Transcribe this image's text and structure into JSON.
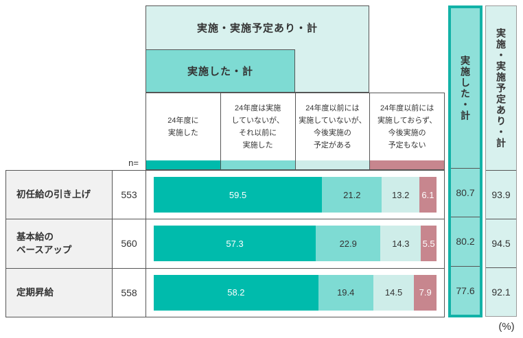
{
  "header": {
    "outer_label": "実施・実施予定あり・計",
    "inner_label": "実施した・計",
    "n_label": "n=",
    "columns": [
      {
        "label": "24年度に\n実施した",
        "color": "#00BBAC"
      },
      {
        "label": "24年度は実施\nしていないが、\nそれ以前に\n実施した",
        "color": "#7EDBD3"
      },
      {
        "label": "24年度以前には\n実施していないが、\n今後実施の\n予定がある",
        "color": "#CEEDE9"
      },
      {
        "label": "24年度以前には\n実施しておらず、\n今後実施の\n予定もない",
        "color": "#C7868E"
      }
    ]
  },
  "totals_columns": [
    {
      "label": "実施した・計",
      "fill": "#8EE0D9",
      "border": "#12B2A7"
    },
    {
      "label": "実施・実施予定あり・計",
      "fill": "#D8F1EE"
    }
  ],
  "rows": [
    {
      "label": "初任給の引き上げ",
      "n": "553",
      "values": [
        59.5,
        21.2,
        13.2,
        6.1
      ],
      "implemented_total": "80.7",
      "planned_total": "93.9"
    },
    {
      "label": "基本給の\nベースアップ",
      "n": "560",
      "values": [
        57.3,
        22.9,
        14.3,
        5.5
      ],
      "implemented_total": "80.2",
      "planned_total": "94.5"
    },
    {
      "label": "定期昇給",
      "n": "558",
      "values": [
        58.2,
        19.4,
        14.5,
        7.9
      ],
      "implemented_total": "77.6",
      "planned_total": "92.1"
    }
  ],
  "footer": {
    "unit_label": "(%)"
  },
  "chart_data": {
    "type": "bar",
    "subtype": "horizontal-stacked",
    "unit": "%",
    "xlim": [
      0,
      100
    ],
    "categories": [
      "初任給の引き上げ",
      "基本給のベースアップ",
      "定期昇給"
    ],
    "sample_sizes": [
      553,
      560,
      558
    ],
    "series": [
      {
        "name": "24年度に実施した",
        "color": "#00BBAC",
        "values": [
          59.5,
          57.3,
          58.2
        ]
      },
      {
        "name": "24年度は実施していないが、それ以前に実施した",
        "color": "#7EDBD3",
        "values": [
          21.2,
          22.9,
          19.4
        ]
      },
      {
        "name": "24年度以前には実施していないが、今後実施の予定がある",
        "color": "#CEEDE9",
        "values": [
          13.2,
          14.3,
          14.5
        ]
      },
      {
        "name": "24年度以前には実施しておらず、今後実施の予定もない",
        "color": "#C7868E",
        "values": [
          6.1,
          5.5,
          7.9
        ]
      }
    ],
    "derived_totals": [
      {
        "name": "実施した・計",
        "values": [
          80.7,
          80.2,
          77.6
        ]
      },
      {
        "name": "実施・実施予定あり・計",
        "values": [
          93.9,
          94.5,
          92.1
        ]
      }
    ],
    "legend_position": "column-headers-top",
    "grid": false
  }
}
